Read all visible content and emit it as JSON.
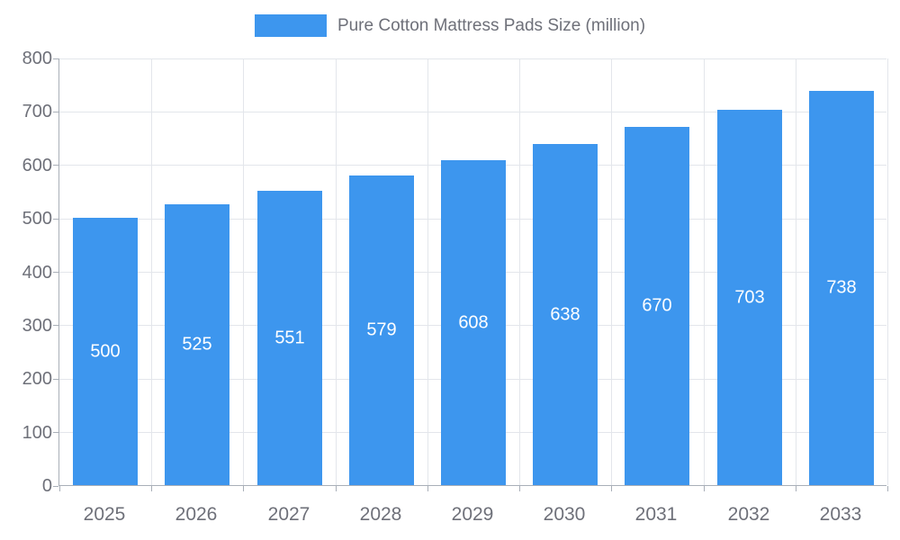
{
  "chart_data": {
    "type": "bar",
    "title": "Pure Cotton Mattress Pads Size (million)",
    "categories": [
      "2025",
      "2026",
      "2027",
      "2028",
      "2029",
      "2030",
      "2031",
      "2032",
      "2033"
    ],
    "values": [
      500,
      525,
      551,
      579,
      608,
      638,
      670,
      703,
      738
    ],
    "xlabel": "",
    "ylabel": "",
    "ylim": [
      0,
      800
    ],
    "ytick_step": 100,
    "grid": true,
    "legend_position": "top",
    "colors": {
      "bar": "#3D96EE",
      "bar_value_label": "#ffffff",
      "axis_text": "#6E7079",
      "grid_line": "#e3e6eb",
      "axis_line": "#a9afb8"
    }
  }
}
